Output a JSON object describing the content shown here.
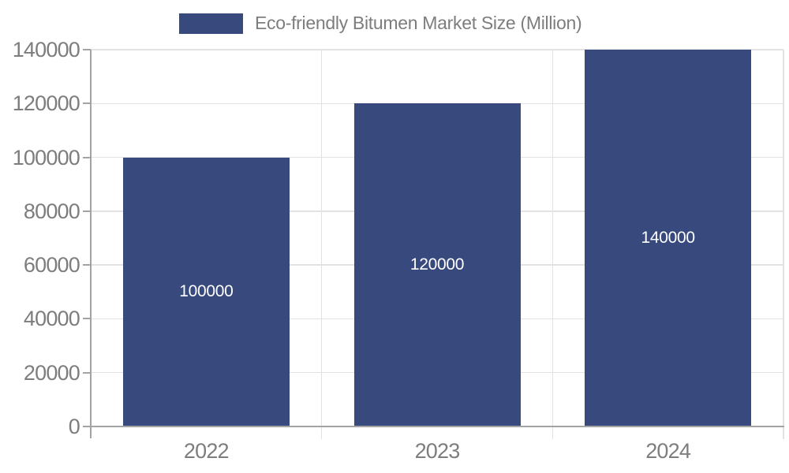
{
  "chart_data": {
    "type": "bar",
    "title": "",
    "legend": "Eco-friendly Bitumen Market Size (Million)",
    "legend_position": "top",
    "categories": [
      "2022",
      "2023",
      "2024"
    ],
    "values": [
      100000,
      120000,
      140000
    ],
    "bar_labels": [
      "100000",
      "120000",
      "140000"
    ],
    "bar_label_position": "inside-center",
    "xlabel": "",
    "ylabel": "",
    "ylim": [
      0,
      140000
    ],
    "y_tick_step": 20000,
    "y_tick_labels": [
      "0",
      "20000",
      "40000",
      "60000",
      "80000",
      "100000",
      "120000",
      "140000"
    ],
    "grid": true,
    "colors": {
      "bar": "#37497d",
      "bar_label_text": "#ffffff",
      "axis_text": "#7d7d7d",
      "grid_line": "#e2e2e2",
      "axis_line": "#a3a3a3",
      "background": "#ffffff"
    }
  }
}
